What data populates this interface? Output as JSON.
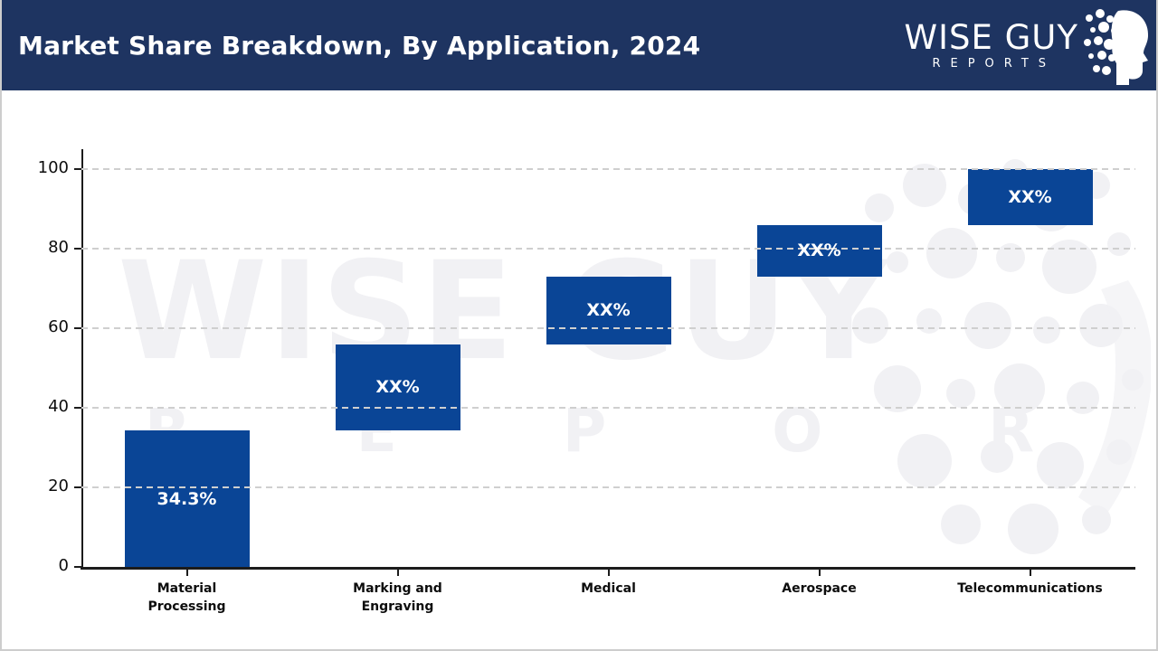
{
  "header": {
    "title": "Market Share Breakdown, By Application, 2024",
    "bg_color": "#1E3461",
    "logo": {
      "line1": "WISE GUY",
      "line2": "REPORTS"
    }
  },
  "watermark": {
    "line1": "WISE GUY",
    "line2": "REPORTS"
  },
  "chart_data": {
    "type": "bar",
    "subtype": "waterfall",
    "title": "Market Share Breakdown, By Application, 2024",
    "xlabel": "",
    "ylabel": "",
    "categories": [
      "Material\nProcessing",
      "Marking and\nEngraving",
      "Medical",
      "Aerospace",
      "Telecommunications"
    ],
    "segments": [
      {
        "category": "Material Processing",
        "start": 0,
        "end": 34.3,
        "label": "34.3%"
      },
      {
        "category": "Marking and Engraving",
        "start": 34.3,
        "end": 56,
        "label": "XX%"
      },
      {
        "category": "Medical",
        "start": 56,
        "end": 73,
        "label": "XX%"
      },
      {
        "category": "Aerospace",
        "start": 73,
        "end": 86,
        "label": "XX%"
      },
      {
        "category": "Telecommunications",
        "start": 86,
        "end": 100,
        "label": "XX%"
      }
    ],
    "yticks": [
      0,
      20,
      40,
      60,
      80,
      100
    ],
    "ylim": [
      0,
      105
    ],
    "grid": "horizontal-dashed",
    "legend": "none",
    "colors": {
      "bar": "#0A4596",
      "bar_label": "#ffffff",
      "gridline": "#cfcfcf",
      "axis": "#1c1c1c",
      "tick_text": "#0d0d0d"
    }
  }
}
